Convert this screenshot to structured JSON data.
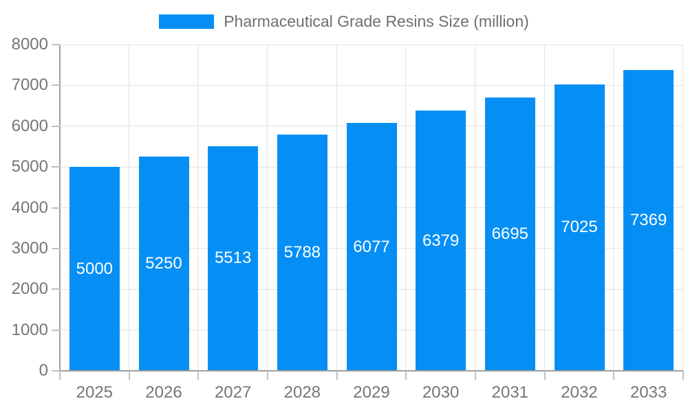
{
  "chart_data": {
    "type": "bar",
    "title": "Pharmaceutical Grade Resins Size (million)",
    "series": [
      {
        "name": "Pharmaceutical Grade Resins Size (million)",
        "values": [
          5000,
          5250,
          5513,
          5788,
          6077,
          6379,
          6695,
          7025,
          7369
        ]
      }
    ],
    "categories": [
      "2025",
      "2026",
      "2027",
      "2028",
      "2029",
      "2030",
      "2031",
      "2032",
      "2033"
    ],
    "xlabel": "",
    "ylabel": "",
    "ylim": [
      0,
      8000
    ],
    "y_ticks": [
      0,
      1000,
      2000,
      3000,
      4000,
      5000,
      6000,
      7000,
      8000
    ],
    "grid": true,
    "legend_position": "top-center",
    "bar_labels_inside": true,
    "colors": {
      "bar": "#058ff5",
      "bar_label": "#ffffff",
      "axis_text": "#757575",
      "legend_text": "#6f6f6f",
      "gridline": "#e2e2e2",
      "axis_line": "#9e9e9e",
      "tick": "#c0c0c0",
      "background": "#ffffff"
    }
  }
}
